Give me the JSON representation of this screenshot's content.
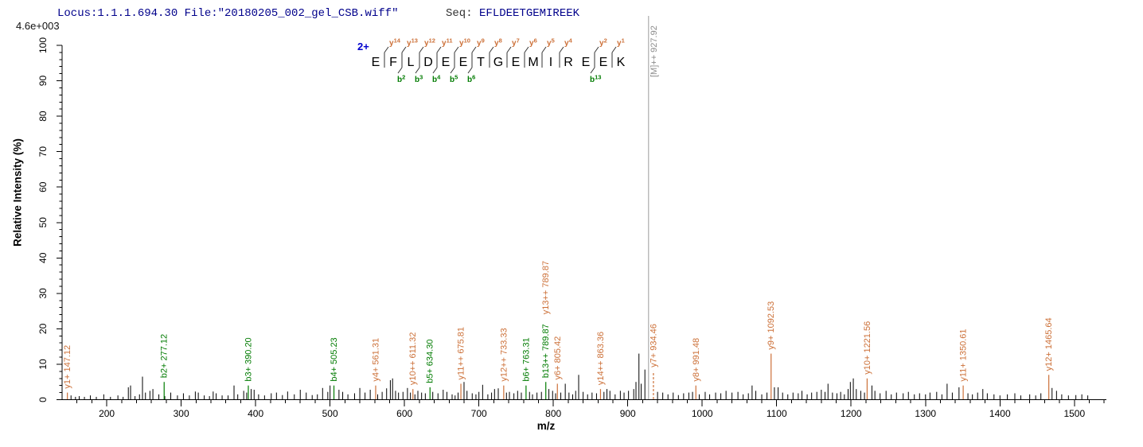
{
  "header": {
    "locus_file": "Locus:1.1.1.694.30 File:\"20180205_002_gel_CSB.wiff\"",
    "seq_label": "Seq: ",
    "sequence": "EFLDEETGEMIREEK",
    "max_intensity": "4.6e+003"
  },
  "peptide_diagram": {
    "charge_label": "2+",
    "residues": [
      "E",
      "F",
      "L",
      "D",
      "E",
      "E",
      "T",
      "G",
      "E",
      "M",
      "I",
      "R",
      "E",
      "E",
      "K"
    ],
    "y_ions": [
      {
        "gap": 1,
        "ion": "y",
        "index": "14"
      },
      {
        "gap": 2,
        "ion": "y",
        "index": "13"
      },
      {
        "gap": 3,
        "ion": "y",
        "index": "12"
      },
      {
        "gap": 4,
        "ion": "y",
        "index": "11"
      },
      {
        "gap": 5,
        "ion": "y",
        "index": "10"
      },
      {
        "gap": 6,
        "ion": "y",
        "index": "9"
      },
      {
        "gap": 7,
        "ion": "y",
        "index": "8"
      },
      {
        "gap": 8,
        "ion": "y",
        "index": "7"
      },
      {
        "gap": 9,
        "ion": "y",
        "index": "6"
      },
      {
        "gap": 10,
        "ion": "y",
        "index": "5"
      },
      {
        "gap": 11,
        "ion": "y",
        "index": "4"
      },
      {
        "gap": 13,
        "ion": "y",
        "index": "2"
      },
      {
        "gap": 14,
        "ion": "y",
        "index": "1"
      }
    ],
    "b_ions": [
      {
        "gap": 2,
        "ion": "b",
        "index": "2"
      },
      {
        "gap": 3,
        "ion": "b",
        "index": "3"
      },
      {
        "gap": 4,
        "ion": "b",
        "index": "4"
      },
      {
        "gap": 5,
        "ion": "b",
        "index": "5"
      },
      {
        "gap": 6,
        "ion": "b",
        "index": "6"
      },
      {
        "gap": 13,
        "ion": "b",
        "index": "13"
      }
    ]
  },
  "chart_data": {
    "type": "bar",
    "subtype": "centroided MS/MS mass spectrum (stick plot)",
    "title": "",
    "xlabel": "m/z",
    "ylabel": "Relative  Intensity  (%)",
    "x_axis": {
      "label": "m/z",
      "min": 140,
      "max": 1543,
      "ticks": [
        200,
        300,
        400,
        500,
        600,
        700,
        800,
        900,
        1000,
        1100,
        1200,
        1300,
        1400,
        1500
      ],
      "minor_step": 20
    },
    "y_axis": {
      "label": "Relative  Intensity  (%)",
      "min": 0,
      "max": 100,
      "ticks": [
        0,
        10,
        20,
        30,
        40,
        50,
        60,
        70,
        80,
        90,
        100
      ],
      "minor_step": 2,
      "absolute_max": "4.6e+003"
    },
    "precursor": {
      "label": "[M]++ 927.92",
      "mz": 927.92
    },
    "labeled_peaks": [
      {
        "label": "y1+ 147.12",
        "mz": 147.12,
        "intensity": 2.0,
        "series": "y"
      },
      {
        "label": "b2+ 277.12",
        "mz": 277.12,
        "intensity": 5.0,
        "series": "b"
      },
      {
        "label": "b3+ 390.20",
        "mz": 390.2,
        "intensity": 4.0,
        "series": "b"
      },
      {
        "label": "b4+ 505.23",
        "mz": 505.23,
        "intensity": 4.0,
        "series": "b"
      },
      {
        "label": "y4+ 561.31",
        "mz": 561.31,
        "intensity": 4.0,
        "series": "y"
      },
      {
        "label": "y10++ 611.32",
        "mz": 611.32,
        "intensity": 3.0,
        "series": "y"
      },
      {
        "label": "b5+ 634.30",
        "mz": 634.3,
        "intensity": 3.5,
        "series": "b"
      },
      {
        "label": "y11++ 675.81",
        "mz": 675.81,
        "intensity": 4.5,
        "series": "y"
      },
      {
        "label": "y12++ 733.33",
        "mz": 733.33,
        "intensity": 4.0,
        "series": "y"
      },
      {
        "label": "b6+ 763.31",
        "mz": 763.31,
        "intensity": 4.0,
        "series": "b"
      },
      {
        "label": "b13++ 789.87",
        "mz": 789.87,
        "intensity": 5.0,
        "series": "b"
      },
      {
        "label": "y13++ 789.87",
        "mz": 789.87,
        "intensity": 5.0,
        "series": "y",
        "label_lift": 80,
        "no_line": true
      },
      {
        "label": "y6+ 805.42",
        "mz": 805.42,
        "intensity": 4.5,
        "series": "y"
      },
      {
        "label": "y14++ 863.36",
        "mz": 863.36,
        "intensity": 3.0,
        "series": "y"
      },
      {
        "label": "y7+ 934.46",
        "mz": 934.46,
        "intensity": 8.0,
        "series": "y",
        "dashed": true
      },
      {
        "label": "y8+ 991.48",
        "mz": 991.48,
        "intensity": 4.0,
        "series": "y"
      },
      {
        "label": "y9+ 1092.53",
        "mz": 1092.53,
        "intensity": 13.0,
        "series": "y"
      },
      {
        "label": "y10+ 1221.56",
        "mz": 1221.56,
        "intensity": 6.0,
        "series": "y"
      },
      {
        "label": "y11+ 1350.61",
        "mz": 1350.61,
        "intensity": 4.0,
        "series": "y"
      },
      {
        "label": "y12+ 1465.64",
        "mz": 1465.64,
        "intensity": 7.0,
        "series": "y"
      }
    ],
    "noise_peaks": [
      [
        152,
        1.2
      ],
      [
        158,
        0.8
      ],
      [
        163,
        1.0
      ],
      [
        170,
        0.8
      ],
      [
        178,
        1.2
      ],
      [
        186,
        0.8
      ],
      [
        196,
        1.5
      ],
      [
        205,
        0.8
      ],
      [
        215,
        1.2
      ],
      [
        222,
        0.8
      ],
      [
        229,
        3.5
      ],
      [
        232,
        4.0
      ],
      [
        238,
        1.0
      ],
      [
        244,
        1.5
      ],
      [
        248,
        6.5
      ],
      [
        252,
        2.0
      ],
      [
        258,
        2.5
      ],
      [
        262,
        3.0
      ],
      [
        270,
        1.5
      ],
      [
        278,
        1.0
      ],
      [
        286,
        2.0
      ],
      [
        295,
        1.2
      ],
      [
        303,
        1.8
      ],
      [
        311,
        1.2
      ],
      [
        319,
        2.3
      ],
      [
        323,
        2.0
      ],
      [
        331,
        1.2
      ],
      [
        338,
        1.0
      ],
      [
        343,
        2.3
      ],
      [
        347,
        1.8
      ],
      [
        355,
        1.2
      ],
      [
        363,
        1.2
      ],
      [
        371,
        4.0
      ],
      [
        376,
        1.5
      ],
      [
        384,
        2.5
      ],
      [
        388,
        2.0
      ],
      [
        394,
        3.0
      ],
      [
        398,
        2.8
      ],
      [
        404,
        1.5
      ],
      [
        412,
        1.2
      ],
      [
        421,
        1.8
      ],
      [
        428,
        2.0
      ],
      [
        436,
        1.3
      ],
      [
        443,
        2.3
      ],
      [
        452,
        1.5
      ],
      [
        460,
        2.8
      ],
      [
        468,
        2.0
      ],
      [
        476,
        1.3
      ],
      [
        483,
        1.5
      ],
      [
        490,
        3.3
      ],
      [
        497,
        2.2
      ],
      [
        500,
        4.0
      ],
      [
        512,
        2.8
      ],
      [
        517,
        2.2
      ],
      [
        524,
        1.5
      ],
      [
        533,
        1.8
      ],
      [
        540,
        3.3
      ],
      [
        547,
        2.0
      ],
      [
        554,
        2.8
      ],
      [
        564,
        1.5
      ],
      [
        570,
        2.2
      ],
      [
        576,
        3.2
      ],
      [
        581,
        5.5
      ],
      [
        584,
        6.0
      ],
      [
        588,
        2.5
      ],
      [
        592,
        2.0
      ],
      [
        598,
        2.2
      ],
      [
        604,
        3.3
      ],
      [
        608,
        2.0
      ],
      [
        614,
        1.5
      ],
      [
        618,
        2.5
      ],
      [
        623,
        2.0
      ],
      [
        628,
        1.8
      ],
      [
        638,
        2.2
      ],
      [
        645,
        1.8
      ],
      [
        652,
        2.8
      ],
      [
        657,
        2.2
      ],
      [
        664,
        1.5
      ],
      [
        668,
        1.2
      ],
      [
        672,
        2.0
      ],
      [
        680,
        5.0
      ],
      [
        684,
        2.5
      ],
      [
        691,
        1.8
      ],
      [
        696,
        1.5
      ],
      [
        700,
        2.2
      ],
      [
        705,
        4.2
      ],
      [
        712,
        1.5
      ],
      [
        717,
        2.0
      ],
      [
        721,
        3.0
      ],
      [
        726,
        3.2
      ],
      [
        737,
        2.0
      ],
      [
        741,
        2.2
      ],
      [
        747,
        1.8
      ],
      [
        752,
        2.5
      ],
      [
        757,
        2.0
      ],
      [
        768,
        2.2
      ],
      [
        772,
        1.5
      ],
      [
        778,
        2.0
      ],
      [
        784,
        2.2
      ],
      [
        794,
        3.0
      ],
      [
        799,
        2.5
      ],
      [
        803,
        1.8
      ],
      [
        810,
        2.0
      ],
      [
        816,
        4.5
      ],
      [
        821,
        2.0
      ],
      [
        826,
        1.5
      ],
      [
        830,
        2.5
      ],
      [
        834,
        7.0
      ],
      [
        840,
        2.2
      ],
      [
        846,
        1.5
      ],
      [
        852,
        2.0
      ],
      [
        858,
        1.8
      ],
      [
        868,
        2.2
      ],
      [
        872,
        3.0
      ],
      [
        876,
        2.5
      ],
      [
        883,
        1.5
      ],
      [
        890,
        2.5
      ],
      [
        895,
        2.0
      ],
      [
        901,
        2.5
      ],
      [
        908,
        3.0
      ],
      [
        911,
        5.0
      ],
      [
        915,
        13.0
      ],
      [
        918,
        4.5
      ],
      [
        923,
        8.5
      ],
      [
        940,
        2.2
      ],
      [
        947,
        2.0
      ],
      [
        954,
        1.5
      ],
      [
        961,
        2.0
      ],
      [
        968,
        1.3
      ],
      [
        975,
        1.8
      ],
      [
        982,
        2.0
      ],
      [
        987,
        2.2
      ],
      [
        996,
        1.5
      ],
      [
        1004,
        2.2
      ],
      [
        1010,
        1.5
      ],
      [
        1018,
        2.0
      ],
      [
        1025,
        1.8
      ],
      [
        1032,
        2.5
      ],
      [
        1040,
        2.0
      ],
      [
        1048,
        2.2
      ],
      [
        1055,
        1.5
      ],
      [
        1062,
        1.8
      ],
      [
        1067,
        4.0
      ],
      [
        1072,
        2.5
      ],
      [
        1080,
        1.5
      ],
      [
        1087,
        2.0
      ],
      [
        1097,
        3.5
      ],
      [
        1102,
        3.5
      ],
      [
        1108,
        2.0
      ],
      [
        1115,
        1.5
      ],
      [
        1122,
        2.0
      ],
      [
        1129,
        1.8
      ],
      [
        1134,
        2.5
      ],
      [
        1141,
        1.5
      ],
      [
        1147,
        2.0
      ],
      [
        1154,
        2.2
      ],
      [
        1160,
        2.8
      ],
      [
        1165,
        2.2
      ],
      [
        1169,
        4.5
      ],
      [
        1175,
        2.0
      ],
      [
        1181,
        1.8
      ],
      [
        1186,
        2.2
      ],
      [
        1191,
        1.5
      ],
      [
        1196,
        3.0
      ],
      [
        1199,
        5.0
      ],
      [
        1203,
        6.0
      ],
      [
        1207,
        3.0
      ],
      [
        1213,
        2.5
      ],
      [
        1218,
        2.0
      ],
      [
        1228,
        4.0
      ],
      [
        1232,
        2.5
      ],
      [
        1239,
        1.8
      ],
      [
        1247,
        2.5
      ],
      [
        1254,
        1.5
      ],
      [
        1261,
        2.0
      ],
      [
        1270,
        1.8
      ],
      [
        1277,
        2.2
      ],
      [
        1285,
        1.5
      ],
      [
        1292,
        1.8
      ],
      [
        1300,
        1.5
      ],
      [
        1306,
        2.0
      ],
      [
        1315,
        2.2
      ],
      [
        1322,
        1.5
      ],
      [
        1329,
        4.5
      ],
      [
        1336,
        2.0
      ],
      [
        1345,
        3.5
      ],
      [
        1357,
        1.8
      ],
      [
        1363,
        1.5
      ],
      [
        1370,
        2.0
      ],
      [
        1377,
        3.0
      ],
      [
        1383,
        1.8
      ],
      [
        1392,
        1.5
      ],
      [
        1400,
        1.2
      ],
      [
        1410,
        1.5
      ],
      [
        1420,
        1.8
      ],
      [
        1428,
        1.2
      ],
      [
        1440,
        1.5
      ],
      [
        1448,
        1.2
      ],
      [
        1455,
        1.8
      ],
      [
        1470,
        3.3
      ],
      [
        1476,
        2.5
      ],
      [
        1483,
        1.5
      ],
      [
        1492,
        1.2
      ],
      [
        1502,
        1.3
      ],
      [
        1510,
        1.5
      ],
      [
        1518,
        1.2
      ]
    ]
  },
  "colors": {
    "y_ion": "#cc7038",
    "b_ion": "#007b00",
    "noise": "#000000",
    "precursor_line": "#9a9a9a",
    "precursor_label": "#8c8c8c",
    "header_navy": "#00008b",
    "charge_blue": "#0000cd",
    "diagram_marks": "#333333",
    "axis": "#000000"
  }
}
